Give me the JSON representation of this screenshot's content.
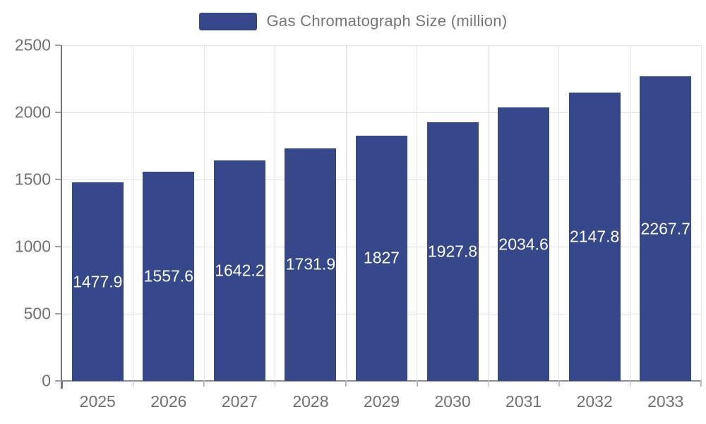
{
  "chart_data": {
    "type": "bar",
    "title": "Gas Chromatograph Size (million)",
    "categories": [
      "2025",
      "2026",
      "2027",
      "2028",
      "2029",
      "2030",
      "2031",
      "2032",
      "2033"
    ],
    "values": [
      1477.9,
      1557.6,
      1642.2,
      1731.9,
      1827,
      1927.8,
      2034.6,
      2147.8,
      2267.7
    ],
    "xlabel": "",
    "ylabel": "",
    "ylim": [
      0,
      2500
    ],
    "yticks": [
      0,
      500,
      1000,
      1500,
      2000,
      2500
    ],
    "grid": true,
    "legend_position": "top-center",
    "value_label_position": "inside-center",
    "colors": {
      "bar": "#36488a",
      "bar_value_label": "#ffffff",
      "legend_text": "#757579",
      "axis_text": "#707074",
      "grid_line": "#e2e2e8",
      "y_axis_line": "#75757a",
      "x_axis_line": "#8e8e94",
      "y_tick": "#9e9ea4",
      "x_tick": "#b9b9c2",
      "background": "#ffffff"
    }
  }
}
